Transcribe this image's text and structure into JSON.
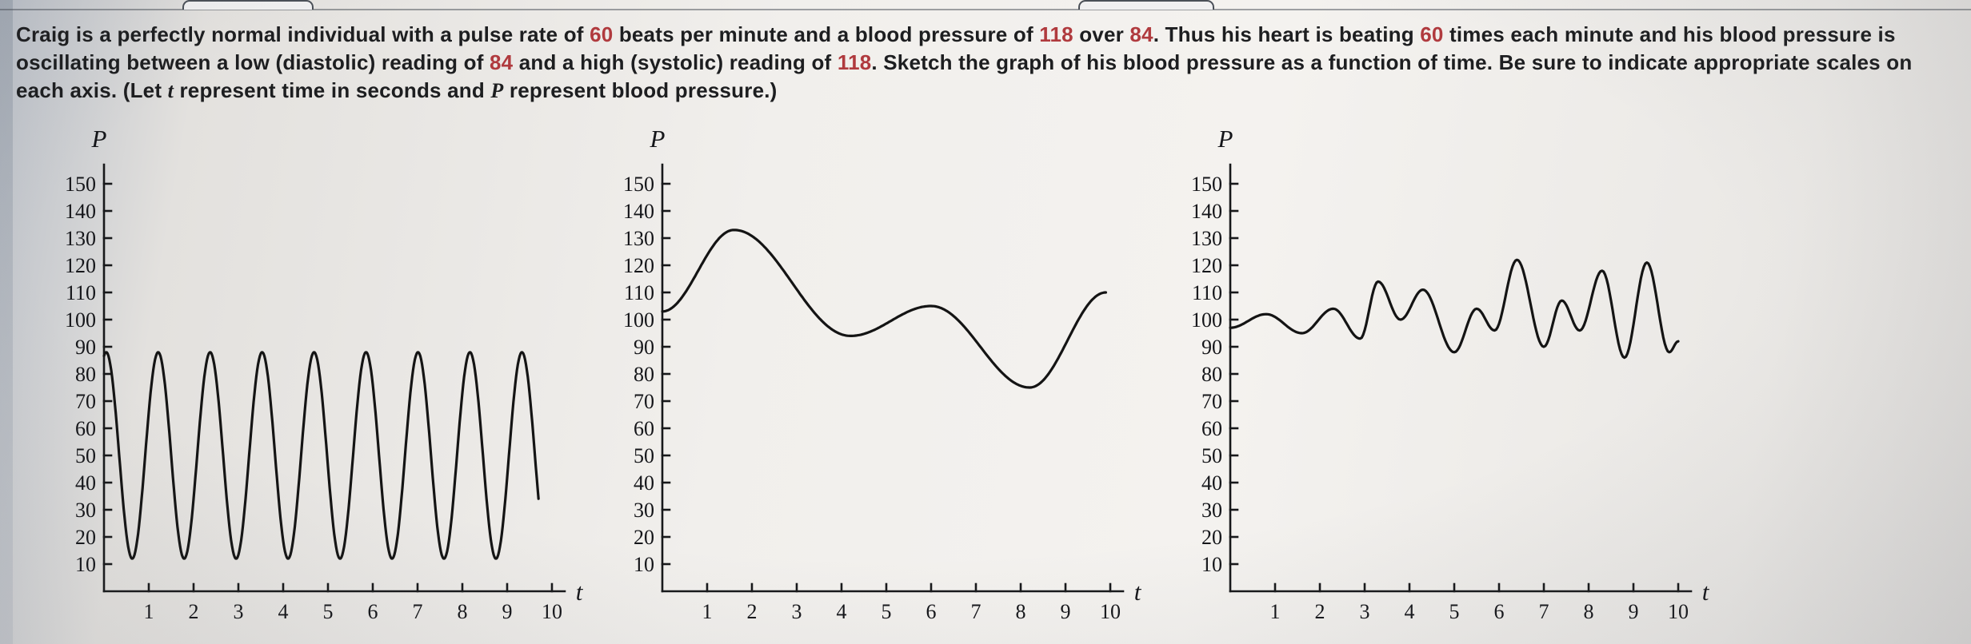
{
  "colors": {
    "highlight_number": "#b03a3e",
    "curve": "#141414",
    "axis": "#17181a"
  },
  "question": {
    "segments": [
      {
        "t": "Craig is a perfectly normal individual with a pulse rate of "
      },
      {
        "t": "60",
        "c": "red"
      },
      {
        "t": " beats per minute and a blood pressure of "
      },
      {
        "t": "118",
        "c": "red"
      },
      {
        "t": " over "
      },
      {
        "t": "84",
        "c": "red"
      },
      {
        "t": ". Thus his heart is beating "
      },
      {
        "t": "60",
        "c": "red"
      },
      {
        "t": " times each minute and his blood pressure is oscillating between a low (diastolic) reading of "
      },
      {
        "t": "84",
        "c": "red"
      },
      {
        "t": " and a high (systolic) reading of "
      },
      {
        "t": "118",
        "c": "red"
      },
      {
        "t": ". Sketch the graph of his blood pressure as a function of time. Be sure to indicate appropriate scales on each axis. (Let "
      },
      {
        "t": "t",
        "c": "var"
      },
      {
        "t": " represent time in seconds and "
      },
      {
        "t": "P",
        "c": "var"
      },
      {
        "t": " represent blood pressure.)"
      }
    ]
  },
  "chart_data": [
    {
      "name": "answer-option-graph-1",
      "type": "line",
      "xlabel": "t",
      "ylabel": "P",
      "xticks": [
        1,
        2,
        3,
        4,
        5,
        6,
        7,
        8,
        9,
        10
      ],
      "yticks": [
        10,
        20,
        30,
        40,
        50,
        60,
        70,
        80,
        90,
        100,
        110,
        120,
        130,
        140,
        150
      ],
      "xlim": [
        0,
        10.5
      ],
      "ylim": [
        0,
        160
      ],
      "curve": {
        "kind": "sinusoid",
        "mean": 50,
        "amplitude": 38,
        "period": 1.16,
        "t_peak": 0.05,
        "t_start": 0,
        "t_end": 9.7
      }
    },
    {
      "name": "answer-option-graph-2",
      "type": "line",
      "xlabel": "t",
      "ylabel": "P",
      "xticks": [
        1,
        2,
        3,
        4,
        5,
        6,
        7,
        8,
        9,
        10
      ],
      "yticks": [
        10,
        20,
        30,
        40,
        50,
        60,
        70,
        80,
        90,
        100,
        110,
        120,
        130,
        140,
        150
      ],
      "xlim": [
        0,
        10.5
      ],
      "ylim": [
        0,
        160
      ],
      "curve": {
        "kind": "keypoints",
        "points": [
          [
            0,
            103
          ],
          [
            1.6,
            133
          ],
          [
            4.2,
            94
          ],
          [
            6.0,
            105
          ],
          [
            8.2,
            75
          ],
          [
            9.9,
            110
          ]
        ]
      }
    },
    {
      "name": "answer-option-graph-3",
      "type": "line",
      "xlabel": "t",
      "ylabel": "P",
      "xticks": [
        1,
        2,
        3,
        4,
        5,
        6,
        7,
        8,
        9,
        10
      ],
      "yticks": [
        10,
        20,
        30,
        40,
        50,
        60,
        70,
        80,
        90,
        100,
        110,
        120,
        130,
        140,
        150
      ],
      "xlim": [
        0,
        10.5
      ],
      "ylim": [
        0,
        160
      ],
      "curve": {
        "kind": "keypoints",
        "points": [
          [
            0,
            97
          ],
          [
            0.8,
            102
          ],
          [
            1.6,
            95
          ],
          [
            2.3,
            104
          ],
          [
            2.9,
            93
          ],
          [
            3.3,
            114
          ],
          [
            3.8,
            100
          ],
          [
            4.3,
            111
          ],
          [
            5.0,
            88
          ],
          [
            5.5,
            104
          ],
          [
            5.9,
            96
          ],
          [
            6.4,
            122
          ],
          [
            7.0,
            90
          ],
          [
            7.4,
            107
          ],
          [
            7.8,
            96
          ],
          [
            8.3,
            118
          ],
          [
            8.8,
            86
          ],
          [
            9.3,
            121
          ],
          [
            9.8,
            88
          ],
          [
            10,
            92
          ]
        ]
      }
    }
  ]
}
